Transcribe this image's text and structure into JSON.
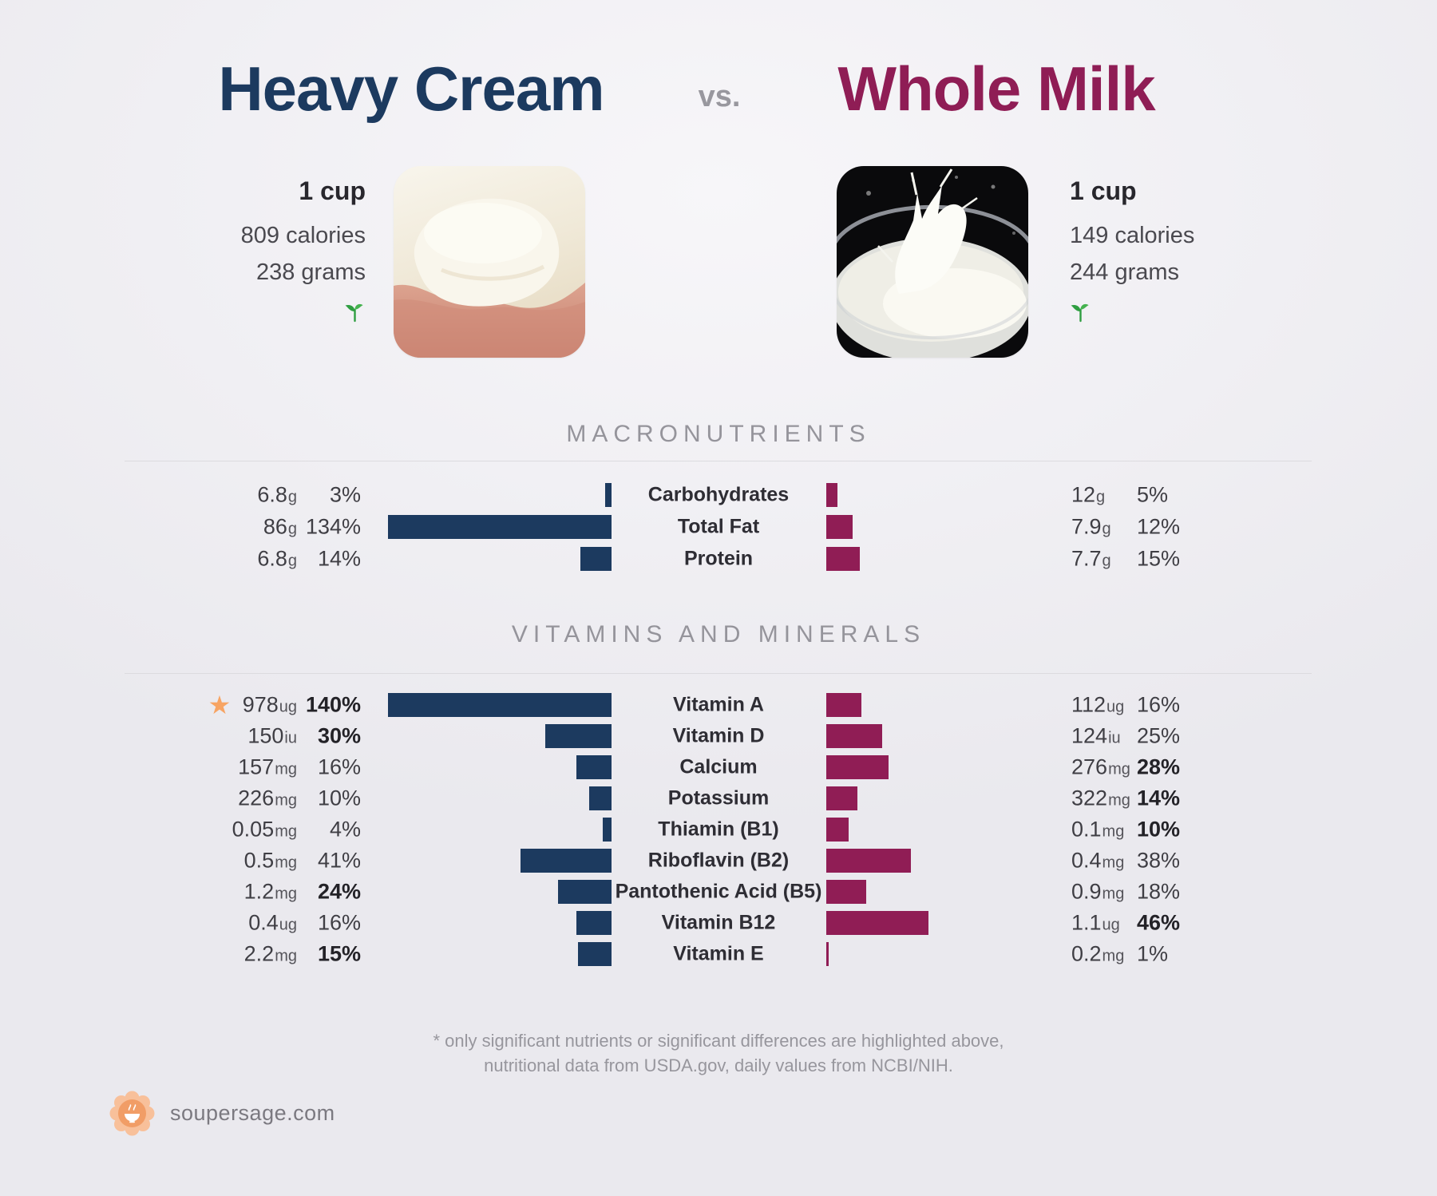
{
  "header": {
    "title_left": "Heavy Cream",
    "vs": "vs.",
    "title_right": "Whole Milk"
  },
  "left_food": {
    "serving": "1 cup",
    "calories": "809 calories",
    "weight": "238 grams"
  },
  "right_food": {
    "serving": "1 cup",
    "calories": "149 calories",
    "weight": "244 grams"
  },
  "icons": {
    "star": "★",
    "seedling": "seedling-icon",
    "left_photo": "heavy-cream-photo",
    "right_photo": "milk-splash-photo"
  },
  "colors": {
    "heavy_cream_accent": "#1c3a5f",
    "whole_milk_accent": "#901d55",
    "star": "#f7a463",
    "seedling_green": "#2f9e41",
    "background": "#f0eff3"
  },
  "chart_data": {
    "type": "bar",
    "title": "Heavy Cream vs. Whole Milk",
    "legend": [
      "Heavy Cream (left, navy)",
      "Whole Milk (right, maroon)"
    ],
    "value_axis": "percent daily value, bars capped at ~100%",
    "sections": [
      {
        "title": "MACRONUTRIENTS",
        "rows": [
          {
            "label": "Carbohydrates",
            "left": {
              "value": "6.8",
              "unit": "g",
              "pct": 3
            },
            "right": {
              "value": "12",
              "unit": "g",
              "pct": 5
            }
          },
          {
            "label": "Total Fat",
            "left": {
              "value": "86",
              "unit": "g",
              "pct": 134
            },
            "right": {
              "value": "7.9",
              "unit": "g",
              "pct": 12
            }
          },
          {
            "label": "Protein",
            "left": {
              "value": "6.8",
              "unit": "g",
              "pct": 14
            },
            "right": {
              "value": "7.7",
              "unit": "g",
              "pct": 15
            }
          }
        ]
      },
      {
        "title": "VITAMINS AND MINERALS",
        "rows": [
          {
            "label": "Vitamin A",
            "left": {
              "value": "978",
              "unit": "ug",
              "pct": 140,
              "bold": true,
              "star": true
            },
            "right": {
              "value": "112",
              "unit": "ug",
              "pct": 16
            }
          },
          {
            "label": "Vitamin D",
            "left": {
              "value": "150",
              "unit": "iu",
              "pct": 30,
              "bold": true
            },
            "right": {
              "value": "124",
              "unit": "iu",
              "pct": 25
            }
          },
          {
            "label": "Calcium",
            "left": {
              "value": "157",
              "unit": "mg",
              "pct": 16
            },
            "right": {
              "value": "276",
              "unit": "mg",
              "pct": 28,
              "bold": true
            }
          },
          {
            "label": "Potassium",
            "left": {
              "value": "226",
              "unit": "mg",
              "pct": 10
            },
            "right": {
              "value": "322",
              "unit": "mg",
              "pct": 14,
              "bold": true
            }
          },
          {
            "label": "Thiamin (B1)",
            "left": {
              "value": "0.05",
              "unit": "mg",
              "pct": 4
            },
            "right": {
              "value": "0.1",
              "unit": "mg",
              "pct": 10,
              "bold": true
            }
          },
          {
            "label": "Riboflavin (B2)",
            "left": {
              "value": "0.5",
              "unit": "mg",
              "pct": 41
            },
            "right": {
              "value": "0.4",
              "unit": "mg",
              "pct": 38
            }
          },
          {
            "label": "Pantothenic Acid (B5)",
            "left": {
              "value": "1.2",
              "unit": "mg",
              "pct": 24,
              "bold": true
            },
            "right": {
              "value": "0.9",
              "unit": "mg",
              "pct": 18
            }
          },
          {
            "label": "Vitamin B12",
            "left": {
              "value": "0.4",
              "unit": "ug",
              "pct": 16
            },
            "right": {
              "value": "1.1",
              "unit": "ug",
              "pct": 46,
              "bold": true
            }
          },
          {
            "label": "Vitamin E",
            "left": {
              "value": "2.2",
              "unit": "mg",
              "pct": 15,
              "bold": true
            },
            "right": {
              "value": "0.2",
              "unit": "mg",
              "pct": 1
            }
          }
        ]
      }
    ]
  },
  "footer": {
    "line1": "* only significant nutrients or significant differences are highlighted above,",
    "line2": "nutritional data from USDA.gov, daily values from NCBI/NIH.",
    "brand": "soupersage.com"
  }
}
